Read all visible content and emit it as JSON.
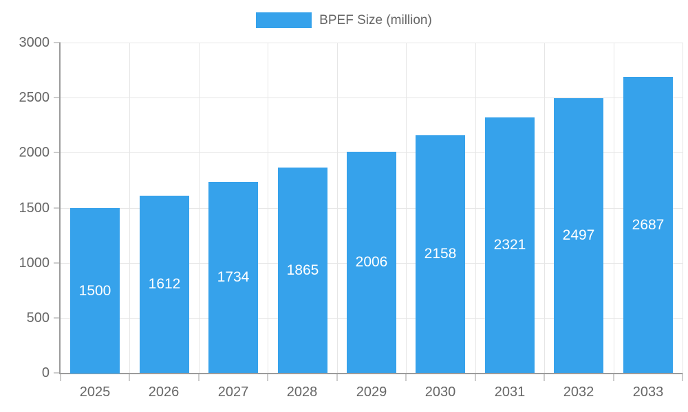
{
  "chart": {
    "legend": {
      "label": "BPEF Size (million)"
    }
  },
  "colors": {
    "bar": "#36A2EB",
    "grid_line": "#e6e6e6",
    "axis_line": "#9b9b9b",
    "tick_mark": "#cccccc",
    "tick_text": "#666666",
    "bar_label_text": "#ffffff",
    "background": "#ffffff"
  },
  "chart_data": {
    "type": "bar",
    "title": "BPEF Size (million)",
    "categories": [
      "2025",
      "2026",
      "2027",
      "2028",
      "2029",
      "2030",
      "2031",
      "2032",
      "2033"
    ],
    "series": [
      {
        "name": "BPEF Size (million)",
        "values": [
          1500,
          1612,
          1734,
          1865,
          2006,
          2158,
          2321,
          2497,
          2687
        ]
      }
    ],
    "bar_value_labels": [
      "1500",
      "1612",
      "1734",
      "1865",
      "2006",
      "2158",
      "2321",
      "2497",
      "2687"
    ],
    "xlabel": "",
    "ylabel": "",
    "ylim": [
      0,
      3000
    ],
    "yticks": [
      0,
      500,
      1000,
      1500,
      2000,
      2500,
      3000
    ],
    "grid": true,
    "legend_position": "top-center",
    "value_labels_inside_bars": true
  }
}
